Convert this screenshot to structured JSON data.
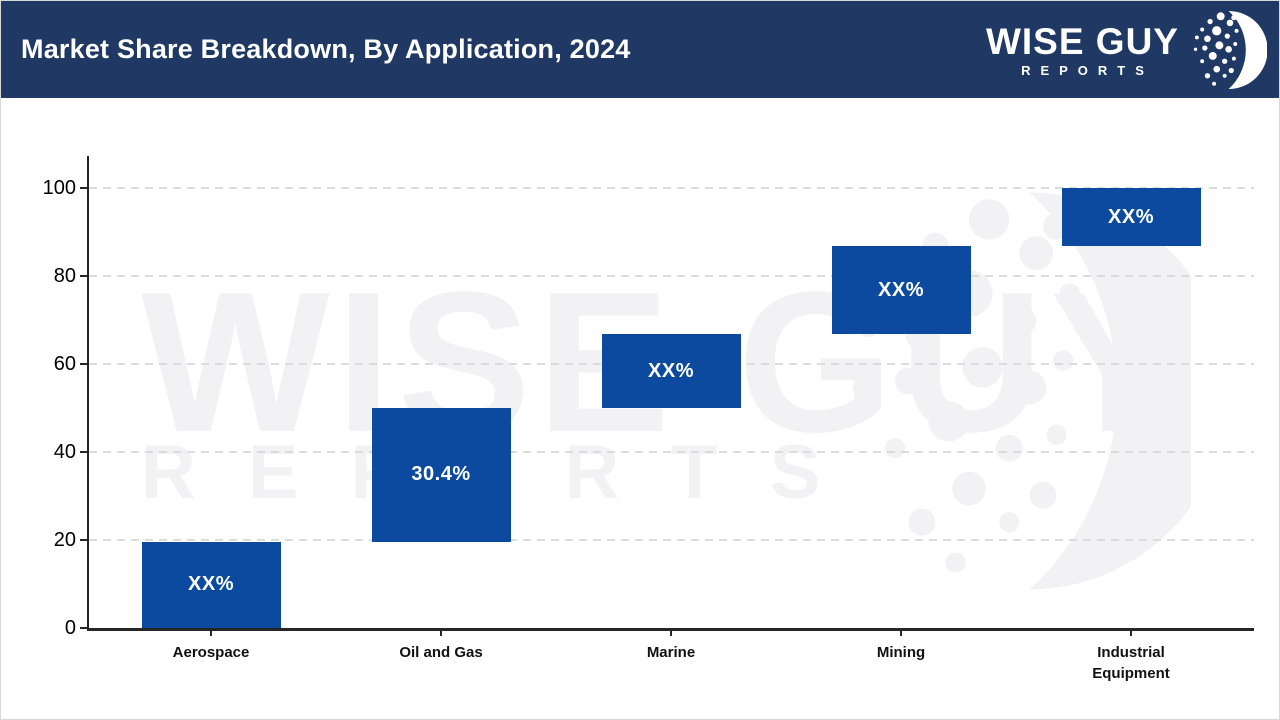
{
  "header": {
    "title": "Market Share Breakdown, By Application, 2024",
    "logo": {
      "line1": "WISE GUY",
      "line2": "REPORTS"
    }
  },
  "watermark": {
    "line1": "WISE GUY",
    "line2": "REPORTS"
  },
  "colors": {
    "header_bg": "#1F3864",
    "bar_fill": "#0B4A9F",
    "bar_label_text": "#ffffff",
    "gridline": "#dcdcdc",
    "axis": "#262626",
    "watermark": "#f2f2f4"
  },
  "chart_data": {
    "type": "bar",
    "subtype": "waterfall",
    "title": "Market Share Breakdown, By Application, 2024",
    "xlabel": "",
    "ylabel": "",
    "ylim": [
      0,
      100
    ],
    "yticks": [
      0,
      20,
      40,
      60,
      80,
      100
    ],
    "grid": "dashed horizontal",
    "legend": "none",
    "categories": [
      "Aerospace",
      "Oil and Gas",
      "Marine",
      "Mining",
      "Industrial Equipment"
    ],
    "segments": [
      {
        "category": "Aerospace",
        "start": 0,
        "end": 19.6,
        "label": "XX%"
      },
      {
        "category": "Oil and Gas",
        "start": 19.6,
        "end": 50.0,
        "label": "30.4%"
      },
      {
        "category": "Marine",
        "start": 50.0,
        "end": 66.8,
        "label": "XX%"
      },
      {
        "category": "Mining",
        "start": 66.8,
        "end": 86.8,
        "label": "XX%"
      },
      {
        "category": "Industrial Equipment",
        "start": 86.8,
        "end": 100.0,
        "label": "XX%"
      }
    ]
  }
}
